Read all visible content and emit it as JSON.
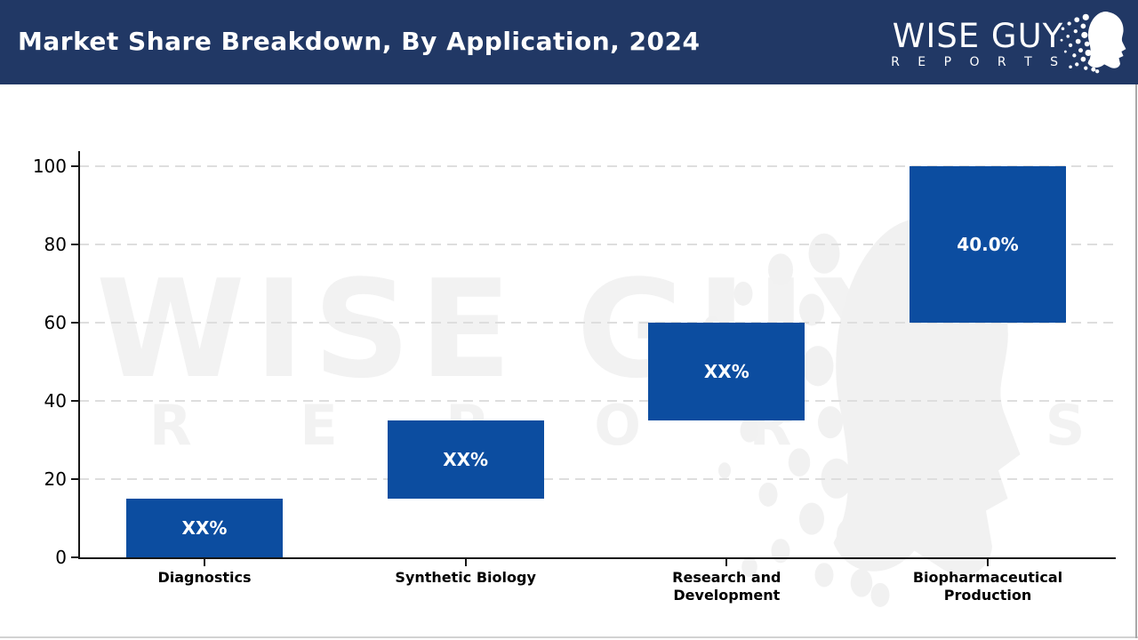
{
  "page": {
    "background": "#ffffff"
  },
  "header": {
    "title": "Market Share Breakdown, By Application, 2024",
    "bg_color": "#213865",
    "logo": {
      "line1": "WISE GUY",
      "line2": "R E P O R T S"
    }
  },
  "watermark": {
    "line1": "WISE GUY",
    "line2": "R E P O R T S"
  },
  "chart_data": {
    "type": "bar",
    "subtype": "floating-range-bars-waterfall-style",
    "title": "Market Share Breakdown, By Application, 2024",
    "categories": [
      "Diagnostics",
      "Synthetic Biology",
      "Research and Development",
      "Biopharmaceutical Production"
    ],
    "bars": [
      {
        "category": "Diagnostics",
        "start": 0,
        "end": 15,
        "label": "XX%"
      },
      {
        "category": "Synthetic Biology",
        "start": 15,
        "end": 35,
        "label": "XX%"
      },
      {
        "category": "Research and Development",
        "start": 35,
        "end": 60,
        "label": "XX%"
      },
      {
        "category": "Biopharmaceutical Production",
        "start": 60,
        "end": 100,
        "label": "40.0%"
      }
    ],
    "xlabel": "",
    "ylabel": "",
    "yticks": [
      0,
      20,
      40,
      60,
      80,
      100
    ],
    "ylim": [
      0,
      104
    ],
    "grid": "horizontal-dashed",
    "legend": "none",
    "bar_color": "#0c4da0",
    "bar_label_color": "#ffffff",
    "axis_color": "#161616",
    "gridline_color": "#dedede"
  }
}
